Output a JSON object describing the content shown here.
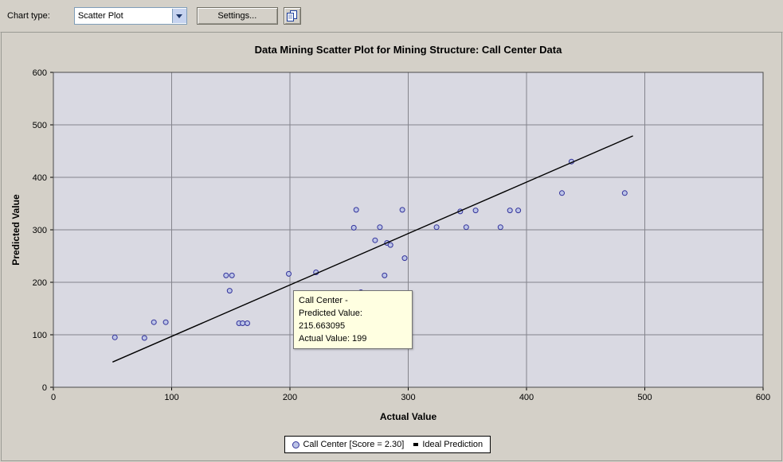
{
  "colors": {
    "window_bg": "#d4d0c8",
    "plot_bg": "#d9d9e2",
    "grid": "#84848c",
    "plot_border": "#4a4a4a",
    "point_stroke": "#32329b",
    "point_fill": "#bcc4e6",
    "ideal_line": "#000000",
    "tooltip_bg": "#ffffe1"
  },
  "toolbar": {
    "chart_type_label": "Chart type:",
    "chart_type_value": "Scatter Plot",
    "settings_button": "Settings...",
    "copy_icon": "copy-icon"
  },
  "tooltip": {
    "lines": [
      "Call Center -",
      "Predicted Value: 215.663095",
      "Actual Value: 199"
    ]
  },
  "legend": {
    "series": [
      "Call Center [Score = 2.30]",
      "Ideal Prediction"
    ]
  },
  "chart_data": {
    "type": "scatter",
    "title": "Data Mining Scatter Plot for Mining Structure: Call Center Data",
    "xlabel": "Actual Value",
    "ylabel": "Predicted Value",
    "xlim": [
      0,
      600
    ],
    "ylim": [
      0,
      600
    ],
    "xticks": [
      0,
      100,
      200,
      300,
      400,
      500,
      600
    ],
    "yticks": [
      0,
      100,
      200,
      300,
      400,
      500,
      600
    ],
    "grid": true,
    "legend_position": "bottom",
    "series": [
      {
        "name": "Call Center [Score = 2.30]",
        "type": "points",
        "color": "#32329b",
        "fill": "#bcc4e6",
        "points": [
          [
            52,
            95
          ],
          [
            77,
            94
          ],
          [
            85,
            124
          ],
          [
            95,
            124
          ],
          [
            146,
            213
          ],
          [
            151,
            213
          ],
          [
            149,
            184
          ],
          [
            157,
            122
          ],
          [
            160,
            122
          ],
          [
            164,
            122
          ],
          [
            199,
            216
          ],
          [
            222,
            219
          ],
          [
            254,
            304
          ],
          [
            256,
            338
          ],
          [
            260,
            181
          ],
          [
            272,
            280
          ],
          [
            276,
            305
          ],
          [
            280,
            213
          ],
          [
            282,
            275
          ],
          [
            285,
            271
          ],
          [
            295,
            338
          ],
          [
            297,
            246
          ],
          [
            324,
            305
          ],
          [
            344,
            335
          ],
          [
            349,
            305
          ],
          [
            357,
            337
          ],
          [
            378,
            305
          ],
          [
            386,
            337
          ],
          [
            393,
            337
          ],
          [
            430,
            370
          ],
          [
            438,
            430
          ],
          [
            483,
            370
          ]
        ]
      },
      {
        "name": "Ideal Prediction",
        "type": "line",
        "color": "#000000",
        "points": [
          [
            50,
            48
          ],
          [
            490,
            479
          ]
        ]
      }
    ]
  }
}
